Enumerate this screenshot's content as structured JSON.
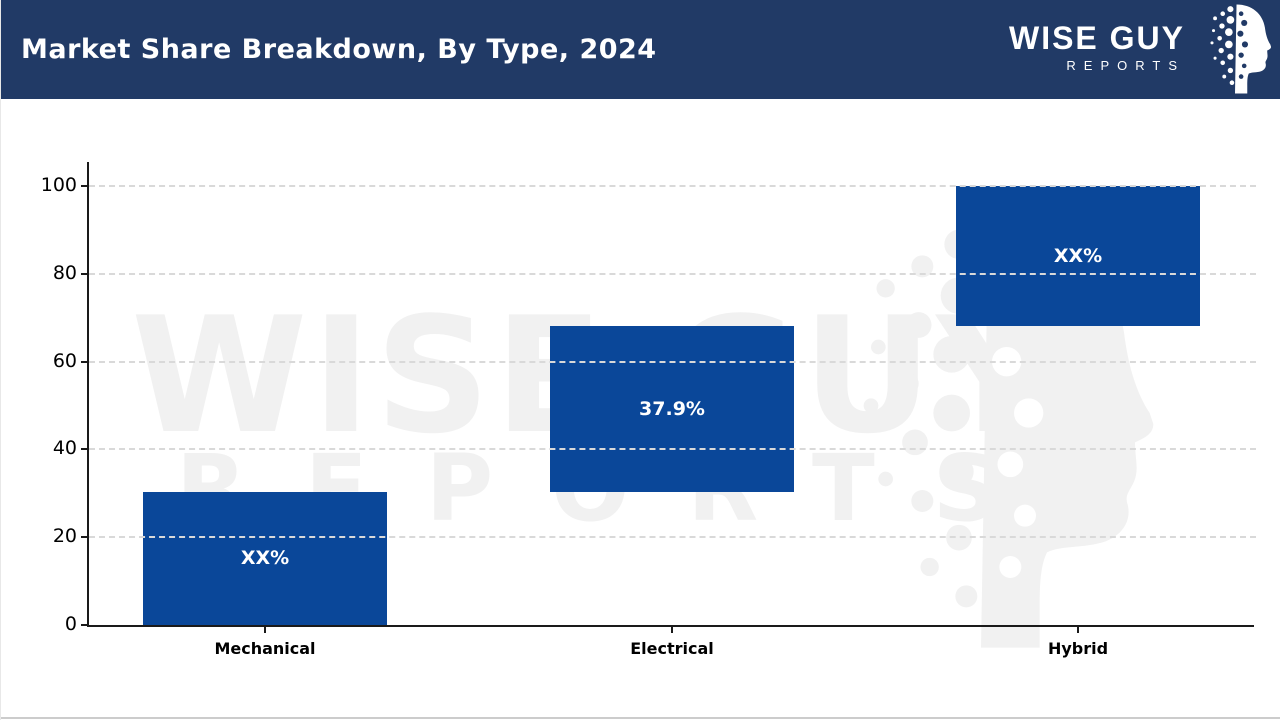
{
  "header": {
    "title": "Market Share Breakdown, By Type, 2024",
    "logo": {
      "brand_line1": "WISE GUY",
      "brand_line2": "REPORTS"
    }
  },
  "watermark": {
    "line1": "WISE GUY",
    "line2": "REPORTS"
  },
  "colors": {
    "header_bg": "#213A66",
    "bar": "#0A4799",
    "grid": "#D9D9D9",
    "axis": "#1A1A1A",
    "watermark": "#F1F1F1",
    "title_text": "#FFFFFF",
    "bar_label_text": "#FFFFFF"
  },
  "chart_data": {
    "type": "bar",
    "subtype": "floating-segment-waterfall",
    "title": "Market Share Breakdown, By Type, 2024",
    "categories": [
      "Mechanical",
      "Electrical",
      "Hybrid"
    ],
    "segments": [
      {
        "category": "Mechanical",
        "start": 0,
        "end": 30.3,
        "label": "XX%"
      },
      {
        "category": "Electrical",
        "start": 30.3,
        "end": 68.2,
        "label": "37.9%"
      },
      {
        "category": "Hybrid",
        "start": 68.2,
        "end": 100,
        "label": "XX%"
      }
    ],
    "xlabel": "",
    "ylabel": "",
    "ylim": [
      0,
      100
    ],
    "yticks": [
      0,
      20,
      40,
      60,
      80,
      100
    ],
    "grid": "horizontal-dashed",
    "grid_above_bars": true,
    "legend": "none"
  }
}
